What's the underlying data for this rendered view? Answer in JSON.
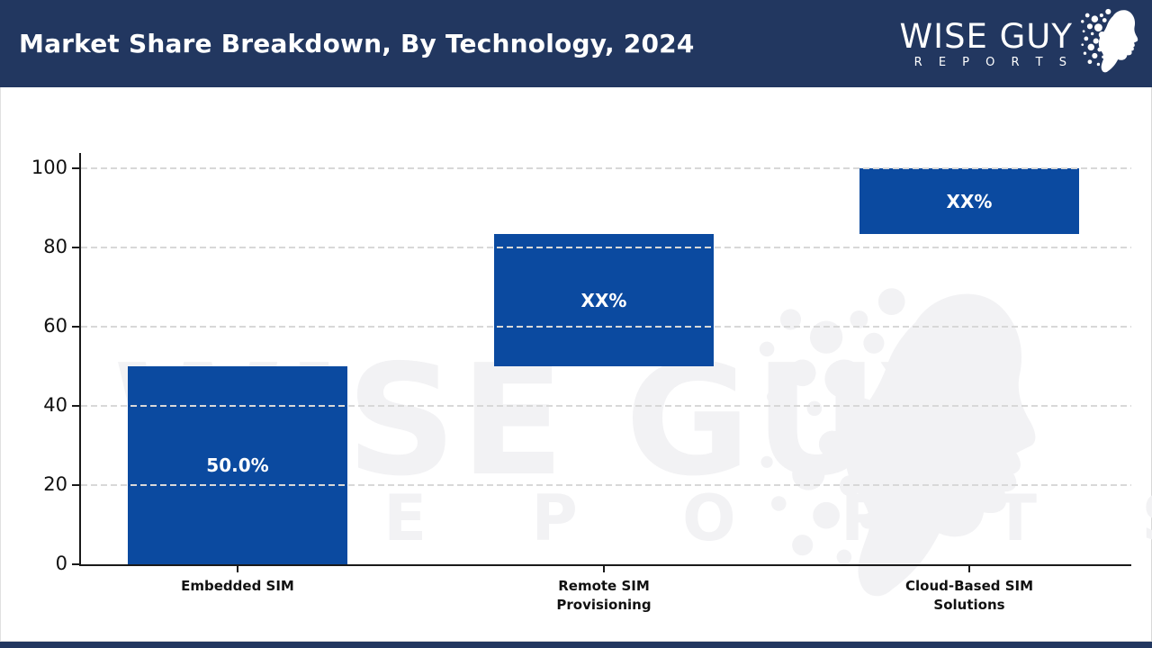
{
  "header": {
    "title": "Market Share Breakdown, By Technology, 2024",
    "bg_color": "#223760",
    "logo": {
      "line1": "WISE GUY",
      "line2": "R E P O R T S"
    }
  },
  "watermark": {
    "line1": "WISE GUY",
    "line2": "R E P O R T S"
  },
  "chart_data": {
    "type": "bar",
    "subtype": "waterfall",
    "title": "Market Share Breakdown, By Technology, 2024",
    "xlabel": "",
    "ylabel": "",
    "ylim": [
      0,
      105
    ],
    "yticks": [
      0,
      20,
      40,
      60,
      80,
      100
    ],
    "grid": "horizontal-dashed",
    "legend": "none",
    "bar_color": "#0b4aa0",
    "categories": [
      "Embedded SIM",
      "Remote SIM Provisioning",
      "Cloud-Based SIM Solutions"
    ],
    "category_lines": [
      [
        "Embedded SIM"
      ],
      [
        "Remote SIM",
        "Provisioning"
      ],
      [
        "Cloud-Based SIM",
        "Solutions"
      ]
    ],
    "segments": [
      {
        "category": "Embedded SIM",
        "start": 0,
        "end": 50,
        "label": "50.0%"
      },
      {
        "category": "Remote SIM Provisioning",
        "start": 50,
        "end": 83.3,
        "label": "XX%"
      },
      {
        "category": "Cloud-Based SIM Solutions",
        "start": 83.3,
        "end": 100,
        "label": "XX%"
      }
    ]
  },
  "colors": {
    "header_bg": "#223760",
    "bar": "#0b4aa0",
    "gridline": "#d8d8d8",
    "axis": "#1a1a1a",
    "watermark": "#f2f2f4",
    "footer": "#223760"
  }
}
